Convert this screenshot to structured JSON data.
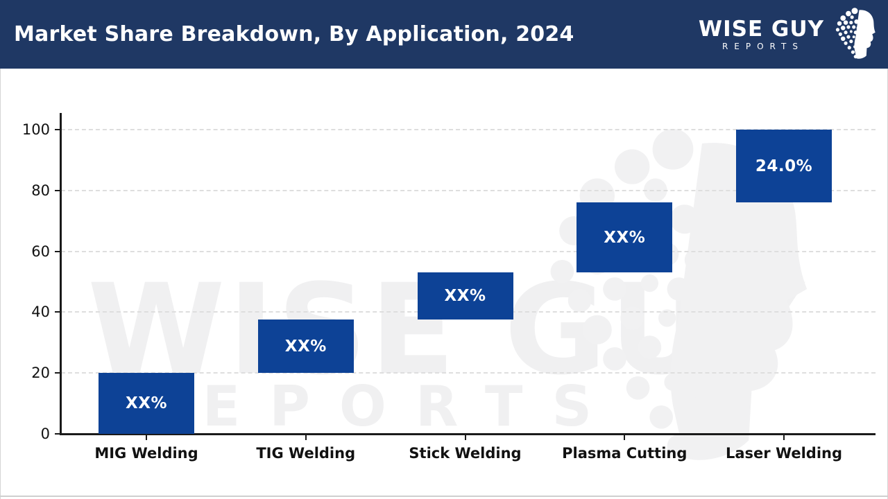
{
  "header": {
    "title": "Market Share Breakdown, By Application, 2024",
    "logo": {
      "line1": "WISE GUY",
      "line2": "REPORTS",
      "icon": "face-profile-dots-icon"
    }
  },
  "watermark": {
    "line1": "WISE GUY",
    "line2": "REPORTS",
    "icon": "face-profile-dots-watermark"
  },
  "colors": {
    "header_bg": "#1f3864",
    "bar": "#0d4296",
    "bar_label": "#ffffff",
    "grid": "#dedede",
    "axis": "#1a1a1a",
    "watermark": "#f0f0f1"
  },
  "chart_data": {
    "type": "bar",
    "variant": "waterfall",
    "title": "Market Share Breakdown, By Application, 2024",
    "categories": [
      "MIG Welding",
      "TIG Welding",
      "Stick Welding",
      "Plasma Cutting",
      "Laser Welding"
    ],
    "series": [
      {
        "name": "Market Share (%)",
        "data": [
          {
            "category": "MIG Welding",
            "start": 0,
            "end": 20,
            "value": 20,
            "label": "XX%"
          },
          {
            "category": "TIG Welding",
            "start": 20,
            "end": 37.5,
            "value": 17.5,
            "label": "XX%"
          },
          {
            "category": "Stick Welding",
            "start": 37.5,
            "end": 53,
            "value": 15.5,
            "label": "XX%"
          },
          {
            "category": "Plasma Cutting",
            "start": 53,
            "end": 76,
            "value": 23,
            "label": "XX%"
          },
          {
            "category": "Laser Welding",
            "start": 76,
            "end": 100,
            "value": 24,
            "label": "24.0%"
          }
        ]
      }
    ],
    "xlabel": "",
    "ylabel": "",
    "ylim": [
      0,
      105
    ],
    "yticks": [
      0,
      20,
      40,
      60,
      80,
      100
    ],
    "grid": "horizontal dashed",
    "legend": null
  }
}
